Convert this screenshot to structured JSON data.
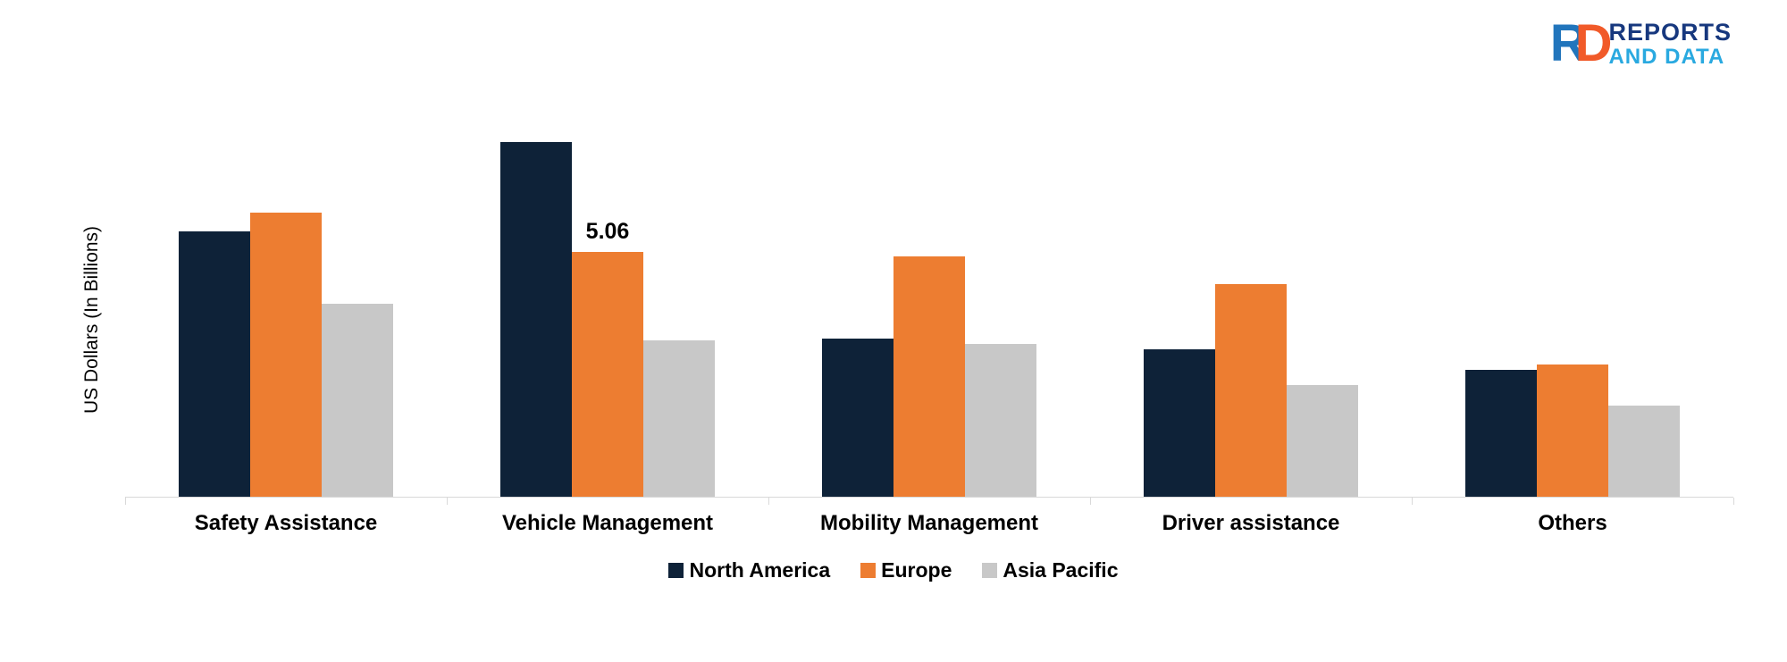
{
  "logo": {
    "mark_r": "R",
    "mark_d": "D",
    "line1": "REPORTS",
    "line2": "AND DATA"
  },
  "chart_data": {
    "type": "bar",
    "title": "",
    "xlabel": "",
    "ylabel": "US Dollars (In Billions)",
    "ylim": [
      0,
      8
    ],
    "grid": false,
    "legend_position": "bottom",
    "categories": [
      "Safety Assistance",
      "Vehicle Management",
      "Mobility Management",
      "Driver assistance",
      "Others"
    ],
    "series": [
      {
        "name": "North America",
        "color": "#0e2238",
        "values": [
          5.48,
          7.32,
          3.27,
          3.04,
          2.61
        ]
      },
      {
        "name": "Europe",
        "color": "#ed7d31",
        "values": [
          5.86,
          5.06,
          4.96,
          4.38,
          2.73
        ]
      },
      {
        "name": "Asia Pacific",
        "color": "#c8c8c8",
        "values": [
          3.98,
          3.22,
          3.15,
          2.31,
          1.88
        ]
      }
    ],
    "annotations": [
      {
        "category": "Vehicle Management",
        "series": "Europe",
        "text": "5.06"
      }
    ]
  }
}
